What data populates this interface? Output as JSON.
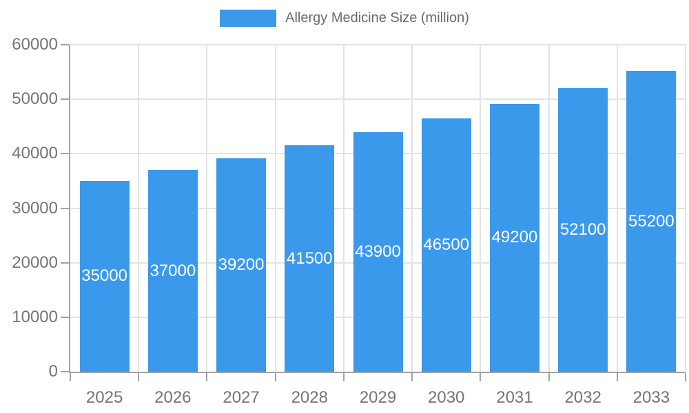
{
  "legend": {
    "label": "Allergy Medicine Size (million)"
  },
  "chart_data": {
    "type": "bar",
    "title": "",
    "xlabel": "",
    "ylabel": "",
    "categories": [
      "2025",
      "2026",
      "2027",
      "2028",
      "2029",
      "2030",
      "2031",
      "2032",
      "2033"
    ],
    "series": [
      {
        "name": "Allergy Medicine Size (million)",
        "values": [
          35000,
          37000,
          39200,
          41500,
          43900,
          46500,
          49200,
          52100,
          55200
        ]
      }
    ],
    "value_labels": [
      "35000",
      "37000",
      "39200",
      "41500",
      "43900",
      "46500",
      "49200",
      "52100",
      "55200"
    ],
    "ylim": [
      0,
      60000
    ],
    "yticks": [
      0,
      10000,
      20000,
      30000,
      40000,
      50000,
      60000
    ],
    "grid": true,
    "legend_position": "top-center",
    "value_label_position": "inside-center",
    "colors": {
      "bar": "#3B99EC",
      "grid": "#E3E3E3",
      "axis": "#A3A3A3",
      "tick_label": "#757575",
      "legend_label": "#6B6B6B",
      "value_label": "#FFFFFF",
      "background": "#FFFFFF"
    }
  }
}
